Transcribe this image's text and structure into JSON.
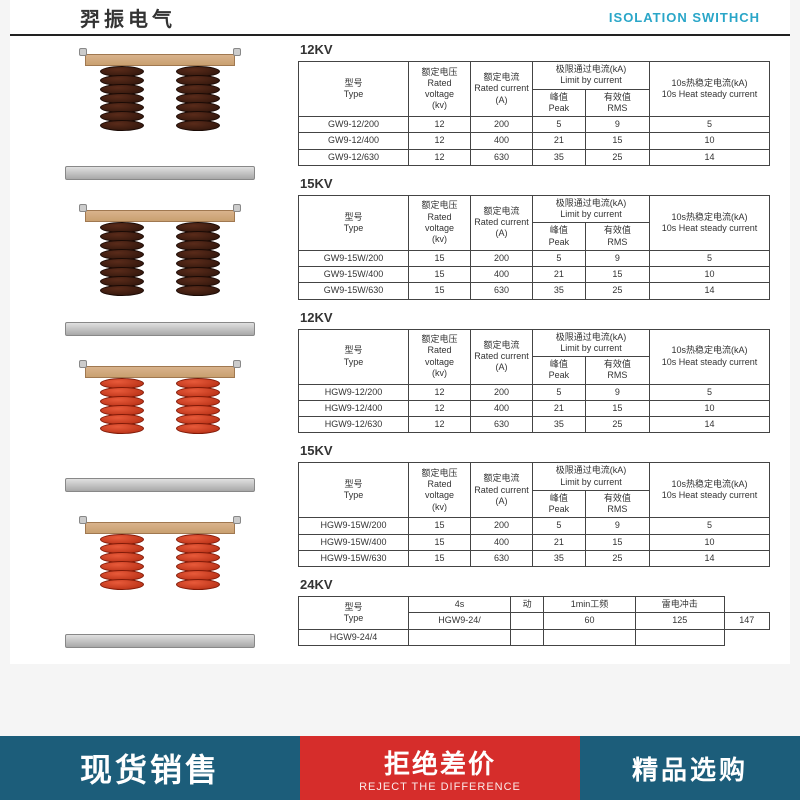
{
  "header": {
    "brand": "羿振电气",
    "section": "ISOLATION SWITHCH"
  },
  "colors": {
    "header_rule": "#222222",
    "section_color": "#2aa6c8",
    "insulator_dark": "#2b130a",
    "insulator_red": "#b02a10",
    "table_border": "#444444",
    "overlay_blue": "#1c5d7a",
    "overlay_red": "#d62d2b"
  },
  "col_headers": {
    "type": {
      "cn": "型号",
      "en": "Type"
    },
    "voltage": {
      "cn": "额定电压",
      "en": "Rated voltage",
      "unit": "(kv)"
    },
    "current": {
      "cn": "额定电流",
      "en": "Rated current",
      "unit": "(A)"
    },
    "limit": {
      "cn": "极限通过电流(kA)",
      "en": "Limit by current"
    },
    "peak": {
      "cn": "峰值",
      "en": "Peak"
    },
    "rms": {
      "cn": "有效值",
      "en": "RMS"
    },
    "heat": {
      "cn": "10s热稳定电流(kA)",
      "en": "10s Heat steady current"
    }
  },
  "products": [
    {
      "insulator_style": "dark",
      "disc_count": 7,
      "kv_label": "12KV",
      "rows": [
        {
          "type": "GW9-12/200",
          "voltage": "12",
          "current": "200",
          "peak": "5",
          "rms": "9",
          "heat": "5"
        },
        {
          "type": "GW9-12/400",
          "voltage": "12",
          "current": "400",
          "peak": "21",
          "rms": "15",
          "heat": "10"
        },
        {
          "type": "GW9-12/630",
          "voltage": "12",
          "current": "630",
          "peak": "35",
          "rms": "25",
          "heat": "14"
        }
      ]
    },
    {
      "insulator_style": "dark",
      "disc_count": 8,
      "kv_label": "15KV",
      "rows": [
        {
          "type": "GW9-15W/200",
          "voltage": "15",
          "current": "200",
          "peak": "5",
          "rms": "9",
          "heat": "5"
        },
        {
          "type": "GW9-15W/400",
          "voltage": "15",
          "current": "400",
          "peak": "21",
          "rms": "15",
          "heat": "10"
        },
        {
          "type": "GW9-15W/630",
          "voltage": "15",
          "current": "630",
          "peak": "35",
          "rms": "25",
          "heat": "14"
        }
      ]
    },
    {
      "insulator_style": "red",
      "disc_count": 6,
      "kv_label": "12KV",
      "rows": [
        {
          "type": "HGW9-12/200",
          "voltage": "12",
          "current": "200",
          "peak": "5",
          "rms": "9",
          "heat": "5"
        },
        {
          "type": "HGW9-12/400",
          "voltage": "12",
          "current": "400",
          "peak": "21",
          "rms": "15",
          "heat": "10"
        },
        {
          "type": "HGW9-12/630",
          "voltage": "12",
          "current": "630",
          "peak": "35",
          "rms": "25",
          "heat": "14"
        }
      ]
    },
    {
      "insulator_style": "red",
      "disc_count": 6,
      "kv_label": "15KV",
      "rows": [
        {
          "type": "HGW9-15W/200",
          "voltage": "15",
          "current": "200",
          "peak": "5",
          "rms": "9",
          "heat": "5"
        },
        {
          "type": "HGW9-15W/400",
          "voltage": "15",
          "current": "400",
          "peak": "21",
          "rms": "15",
          "heat": "10"
        },
        {
          "type": "HGW9-15W/630",
          "voltage": "15",
          "current": "630",
          "peak": "35",
          "rms": "25",
          "heat": "14"
        }
      ]
    }
  ],
  "cutoff_block": {
    "kv_label": "24KV",
    "headers": {
      "type": {
        "cn": "型号",
        "en": "Type"
      },
      "c4s": "4s",
      "cdong": "动",
      "c1min": "1min工频",
      "cthunder": "雷电冲击"
    },
    "partial_rows": [
      {
        "type": "HGW9-24/",
        "v2": "60",
        "v3": "125",
        "v4": "147"
      },
      {
        "type": "HGW9-24/4"
      }
    ]
  },
  "overlay": {
    "left": "现货销售",
    "mid_line1": "拒绝差价",
    "mid_line2": "REJECT THE DIFFERENCE",
    "right": "精品选购"
  }
}
